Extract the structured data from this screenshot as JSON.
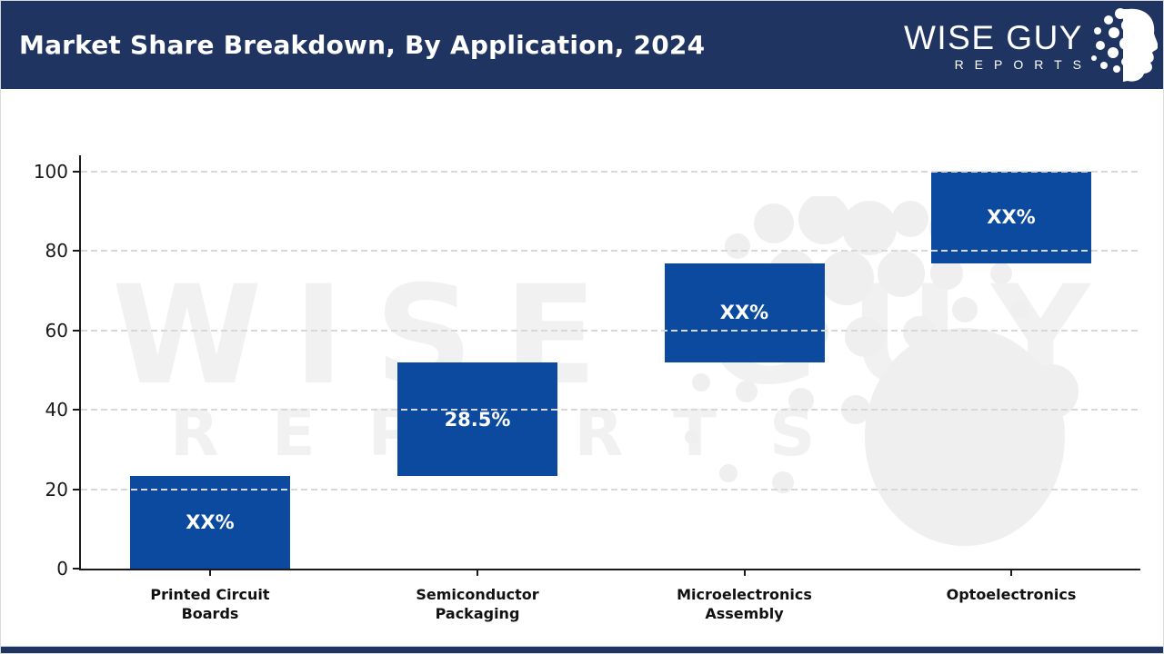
{
  "header": {
    "title": "Market Share Breakdown, By Application, 2024",
    "logo": {
      "primary": "WISE GUY",
      "secondary": "REPORTS"
    }
  },
  "watermark": {
    "primary": "WISE GUY",
    "secondary": "REPORTS"
  },
  "chart_data": {
    "type": "bar",
    "subtype": "floating-waterfall",
    "title": "Market Share Breakdown, By Application, 2024",
    "categories": [
      "Printed Circuit\nBoards",
      "Semiconductor\nPackaging",
      "Microelectronics\nAssembly",
      "Optoelectronics"
    ],
    "segments": [
      {
        "category": "Printed Circuit Boards",
        "start": 0,
        "end": 23.3,
        "label": "XX%"
      },
      {
        "category": "Semiconductor Packaging",
        "start": 23.3,
        "end": 51.8,
        "label": "28.5%",
        "value": 28.5
      },
      {
        "category": "Microelectronics Assembly",
        "start": 51.9,
        "end": 76.8,
        "label": "XX%"
      },
      {
        "category": "Optoelectronics",
        "start": 76.8,
        "end": 100,
        "label": "XX%"
      }
    ],
    "xlabel": "",
    "ylabel": "",
    "ylim": [
      0,
      105
    ],
    "yticks": [
      0,
      20,
      40,
      60,
      80,
      100
    ],
    "grid": "horizontal-dashed",
    "legend": "none",
    "colors": {
      "bar": "#0b4a9f",
      "grid": "#d8d8d8",
      "axis": "#1a1a1a",
      "bar_label": "#ffffff",
      "header_bg": "#203462",
      "watermark": "#f1f1f1"
    }
  }
}
